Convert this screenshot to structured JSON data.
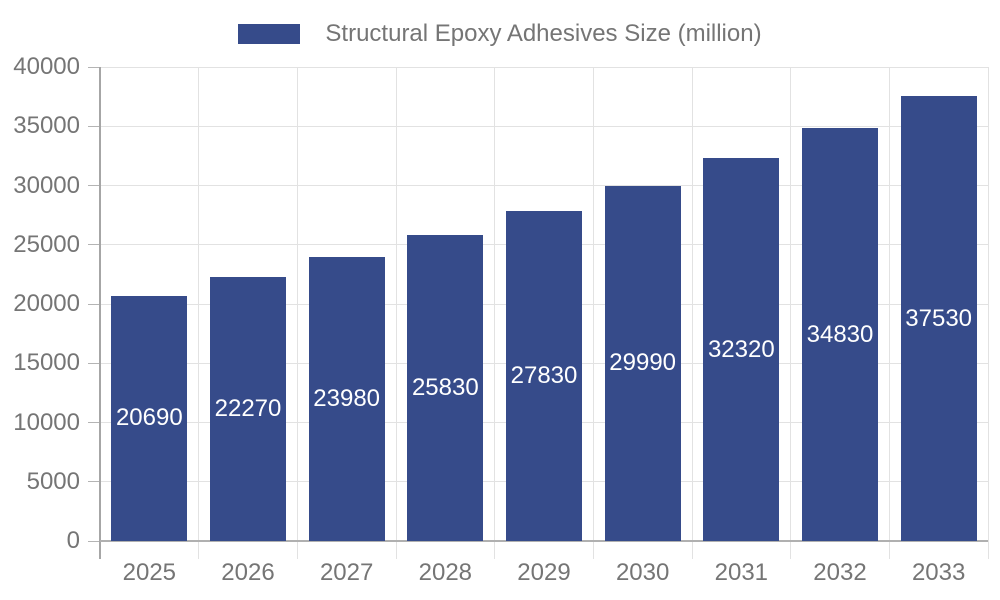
{
  "legend": {
    "label": "Structural Epoxy Adhesives Size (million)"
  },
  "chart_data": {
    "type": "bar",
    "title": "Structural Epoxy Adhesives Size (million)",
    "series_name": "Structural Epoxy Adhesives Size (million)",
    "categories": [
      "2025",
      "2026",
      "2027",
      "2028",
      "2029",
      "2030",
      "2031",
      "2032",
      "2033"
    ],
    "values": [
      20690,
      22270,
      23980,
      25830,
      27830,
      29990,
      32320,
      34830,
      37530
    ],
    "data_labels": [
      "20690",
      "22270",
      "23980",
      "25830",
      "27830",
      "29990",
      "32320",
      "34830",
      "37530"
    ],
    "xlabel": "",
    "ylabel": "",
    "ylim": [
      0,
      40000
    ],
    "y_ticks": [
      0,
      5000,
      10000,
      15000,
      20000,
      25000,
      30000,
      35000,
      40000
    ],
    "grid": "on",
    "legend_position": "top",
    "colors": {
      "bar": "#364B8A",
      "bar_label_text": "#ffffff",
      "axis_text": "#757575",
      "grid_line": "#e2e2e2",
      "axis_line": "#b0b0b0"
    }
  }
}
